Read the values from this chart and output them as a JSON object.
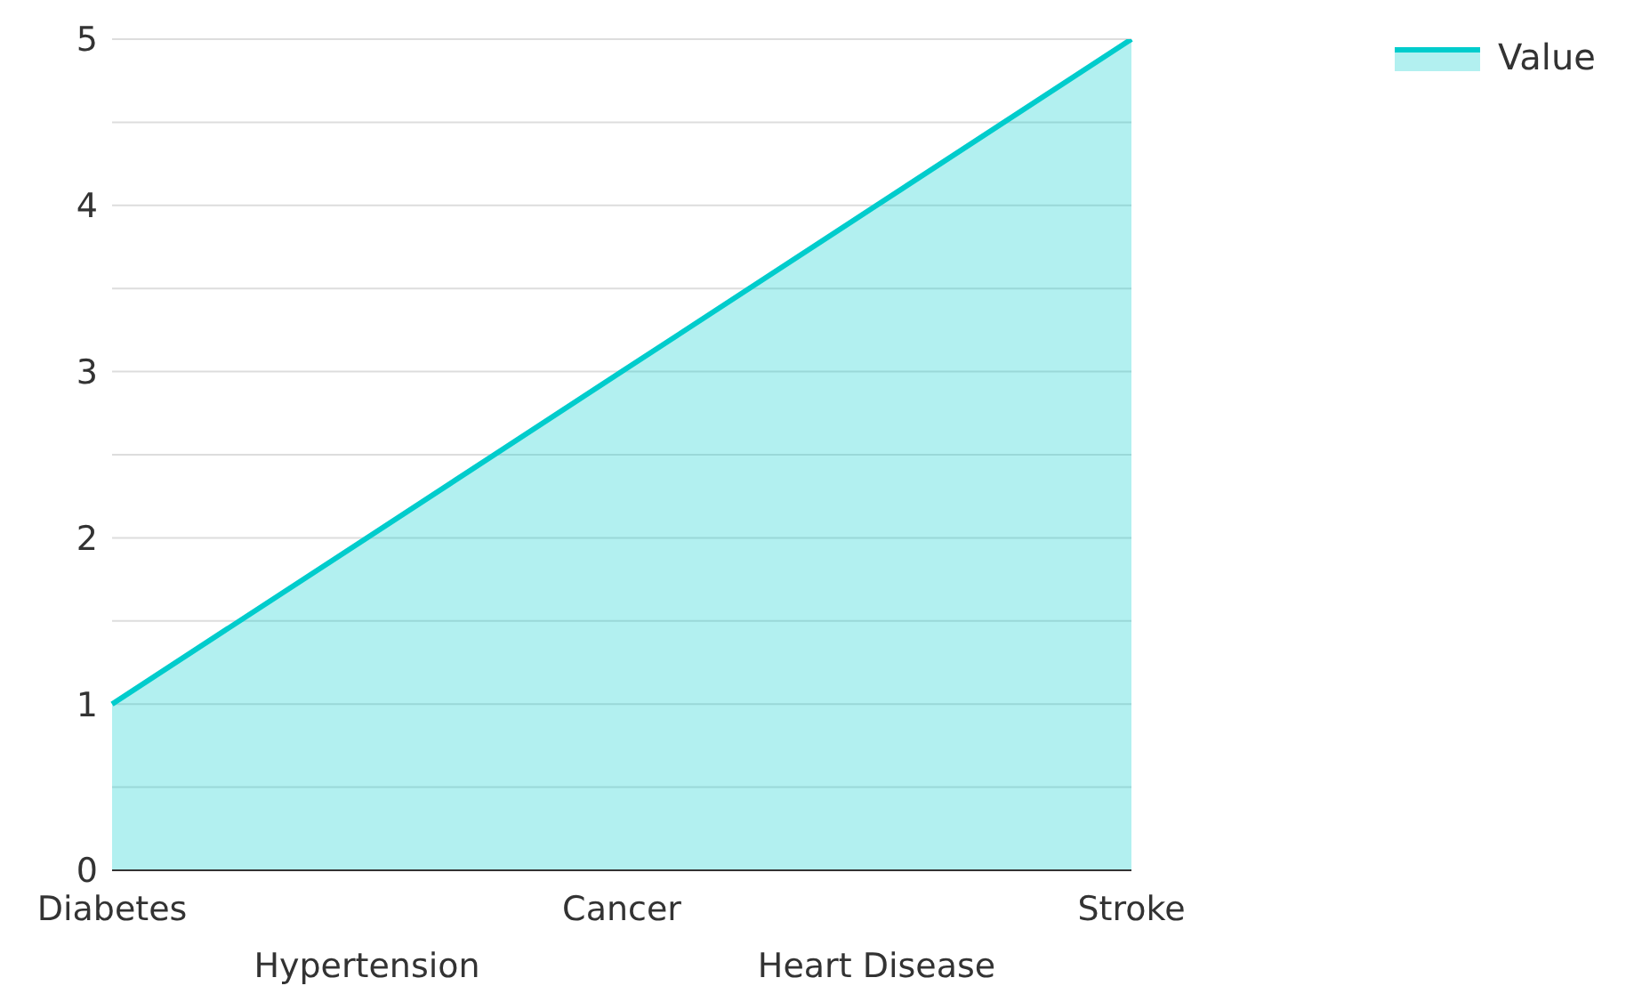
{
  "chart_data": {
    "type": "area",
    "categories": [
      "Diabetes",
      "Hypertension",
      "Cancer",
      "Heart Disease",
      "Stroke"
    ],
    "series": [
      {
        "name": "Value",
        "color": "#00cccc",
        "values": [
          1,
          2,
          3,
          4,
          5
        ]
      }
    ],
    "ylim": [
      0,
      5
    ],
    "yticks": [
      0,
      {
        "value": 0.5,
        "label": null
      },
      1,
      {
        "value": 1.5,
        "label": null
      },
      2,
      {
        "value": 2.5,
        "label": null
      },
      3,
      {
        "value": 3.5,
        "label": null
      },
      4,
      {
        "value": 4.5,
        "label": null
      },
      5
    ],
    "grid": "y",
    "legend": "top right"
  }
}
